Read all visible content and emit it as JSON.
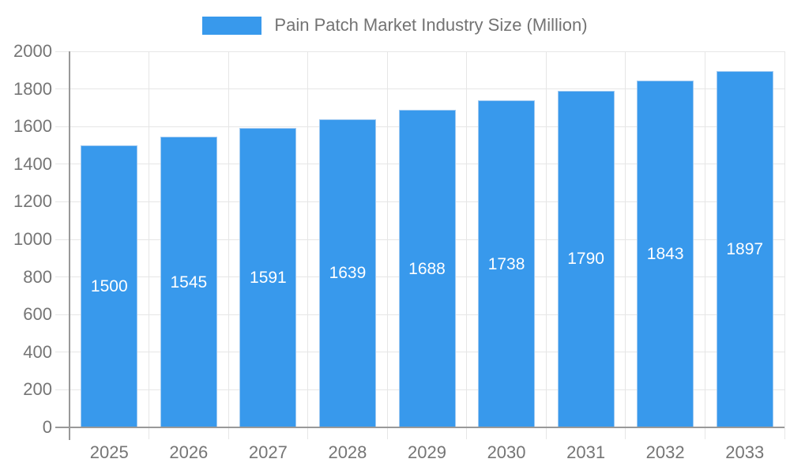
{
  "legend": {
    "label": "Pain Patch Market Industry Size (Million)"
  },
  "chart_data": {
    "type": "bar",
    "title": "Pain Patch Market Industry Size (Million)",
    "series_name": "Pain Patch Market Industry Size (Million)",
    "categories": [
      "2025",
      "2026",
      "2027",
      "2028",
      "2029",
      "2030",
      "2031",
      "2032",
      "2033"
    ],
    "values": [
      1500,
      1545,
      1591,
      1639,
      1688,
      1738,
      1790,
      1843,
      1897
    ],
    "value_labels": [
      "1500",
      "1545",
      "1591",
      "1639",
      "1688",
      "1738",
      "1790",
      "1843",
      "1897"
    ],
    "xlabel": "",
    "ylabel": "",
    "ylim": [
      0,
      2000
    ],
    "ytick_step": 200,
    "yticks": [
      0,
      200,
      400,
      600,
      800,
      1000,
      1200,
      1400,
      1600,
      1800,
      2000
    ],
    "grid": true,
    "legend_position": "top",
    "colors": {
      "bar_fill": "#3899EC",
      "bar_border": "#9fc9f1",
      "value_label": "#ffffff",
      "axis_text": "#757575",
      "legend_text": "#737373",
      "gridline": "#e6e6e6",
      "axis_line": "#999999"
    }
  }
}
